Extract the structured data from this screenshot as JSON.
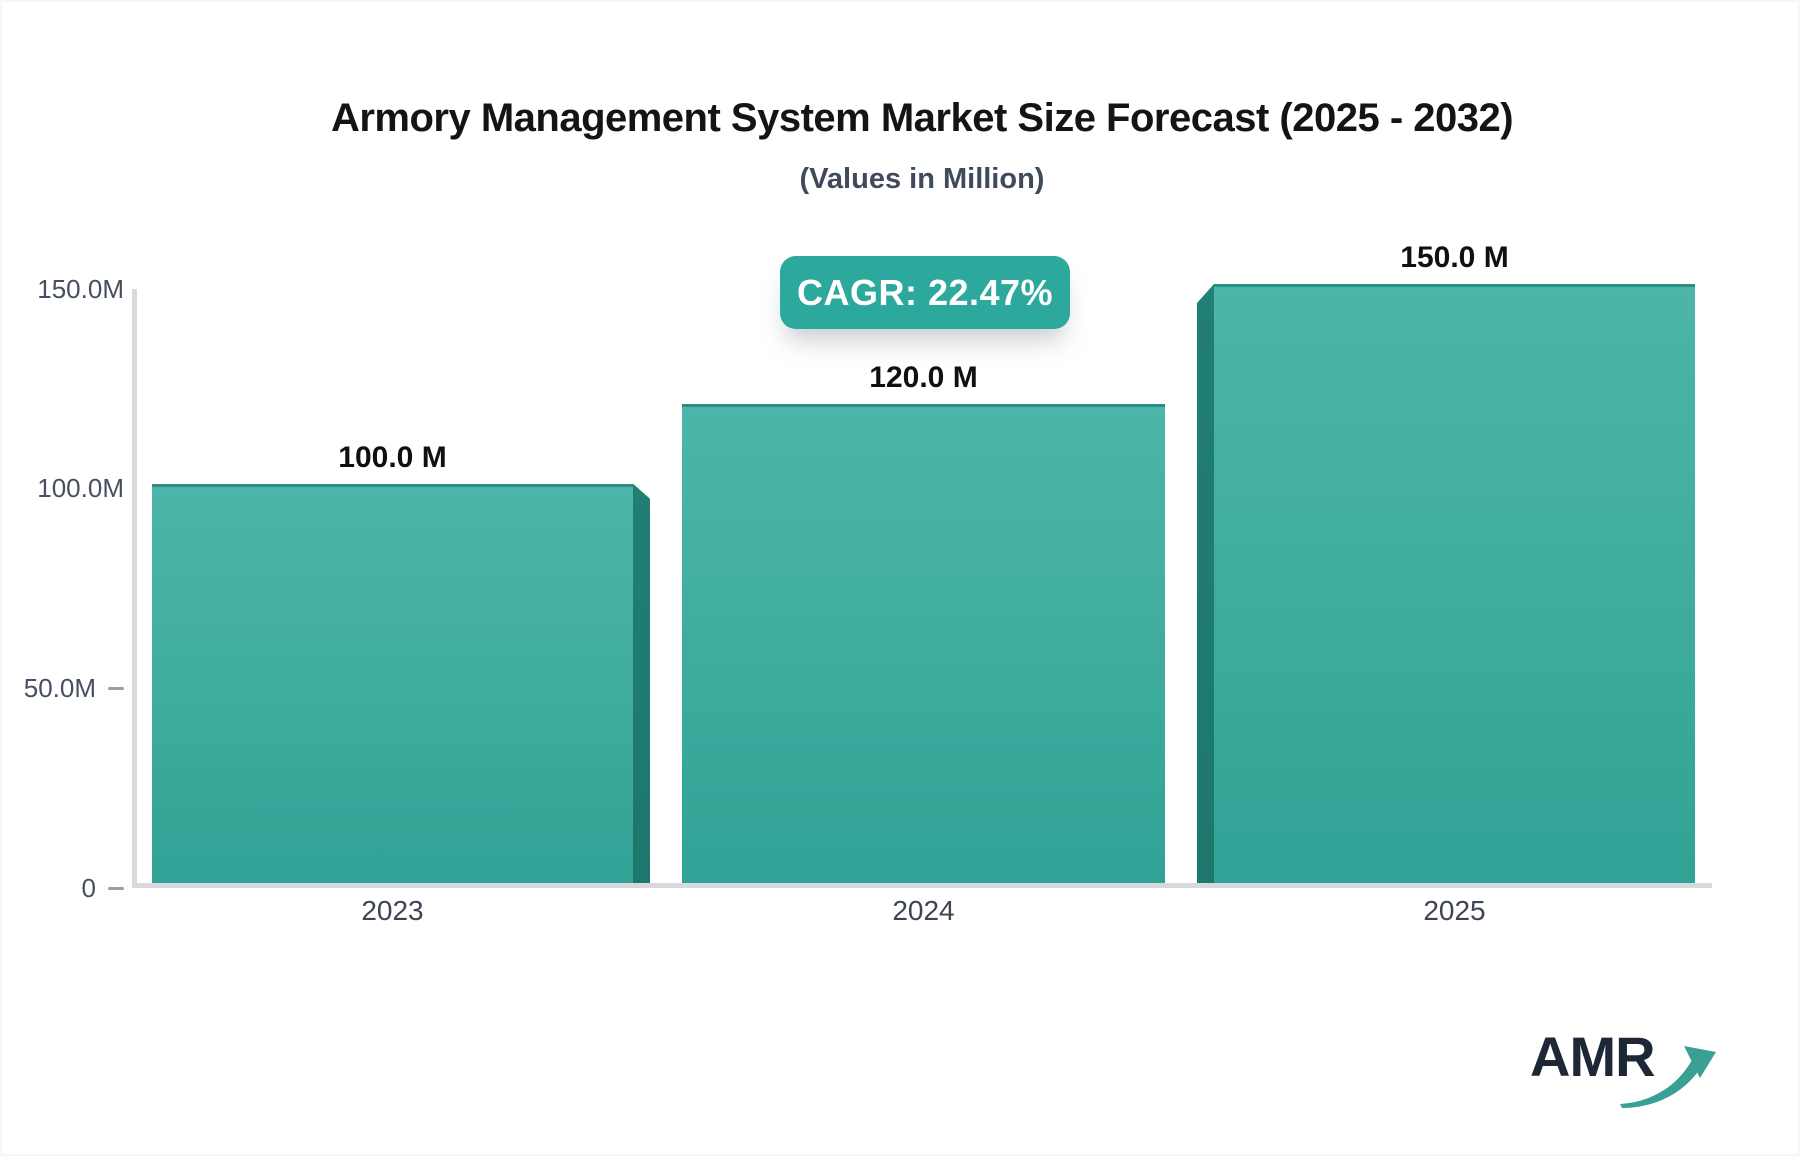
{
  "header": {
    "title": "Armory Management System Market Size Forecast (2025 - 2032)",
    "subtitle": "(Values in Million)"
  },
  "badge": {
    "label": "CAGR: 22.47%"
  },
  "chart_data": {
    "type": "bar",
    "title": "Armory Management System Market Size Forecast (2025 - 2032)",
    "subtitle": "(Values in Million)",
    "unit": "Million",
    "categories": [
      "2023",
      "2024",
      "2025"
    ],
    "values": [
      100.0,
      120.0,
      150.0
    ],
    "bar_labels": [
      "100.0 M",
      "120.0 M",
      "150.0 M"
    ],
    "cagr_label": "CAGR: 22.47%",
    "ylim": [
      0,
      150
    ],
    "y_ticks": [
      {
        "label": "150.0M",
        "value": 150,
        "dash": false
      },
      {
        "label": "100.0M",
        "value": 100,
        "dash": false
      },
      {
        "label": "50.0M",
        "value": 50,
        "dash": true
      },
      {
        "label": "0",
        "value": 0,
        "dash": true
      }
    ],
    "xlabel": "",
    "ylabel": "",
    "grid": false,
    "legend": false,
    "colors": {
      "bar_top": "#4db5aa",
      "bar_bottom": "#31a396",
      "bar_side": "#1f7c71",
      "badge_bg": "#2ca99c",
      "axis_line": "#d8d9de",
      "tick_text": "#47505f"
    }
  },
  "logo": {
    "text": "AMR"
  }
}
